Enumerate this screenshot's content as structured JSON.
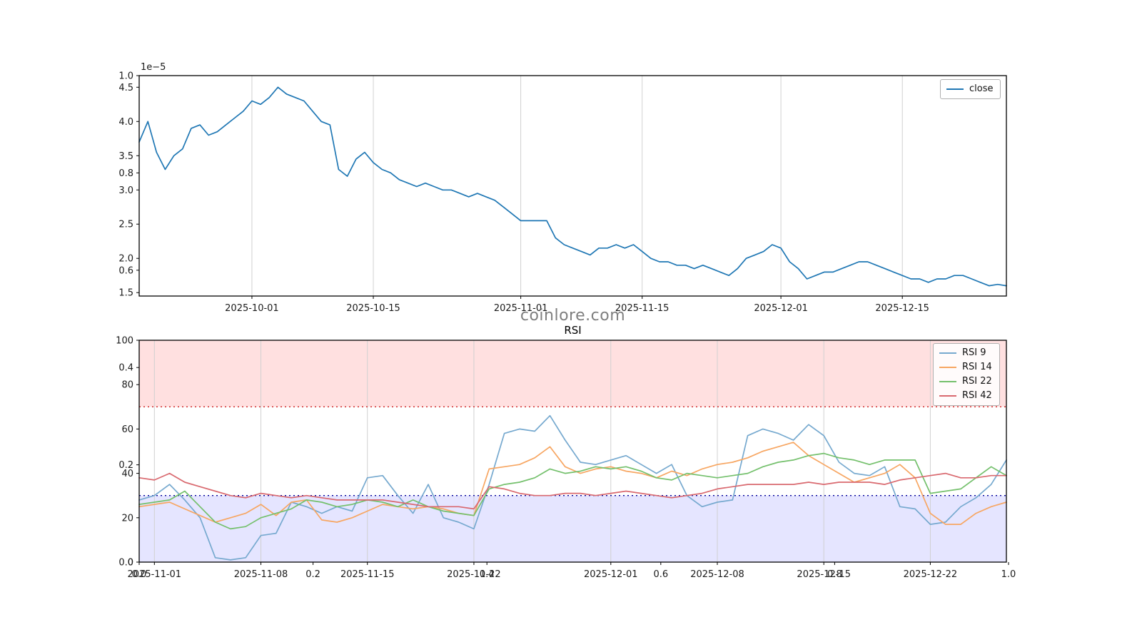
{
  "watermark": "coinlore.com",
  "colors": {
    "grid": "#d0d0d0",
    "spine": "#000000",
    "tick_text": "#1a1a1a",
    "overbought_band": "rgba(255,0,0,0.12)",
    "oversold_band": "rgba(0,0,255,0.10)",
    "overbought_line": "#cc2222",
    "oversold_line": "#000099",
    "watermark_color": "#7f7f7f"
  },
  "overlay_axis": {
    "y_ticks": [
      "1.0",
      "0.8",
      "0.6",
      "0.4",
      "0.2",
      "0.0"
    ],
    "x_ticks": [
      "0.0",
      "0.2",
      "0.4",
      "0.6",
      "0.8",
      "1.0"
    ]
  },
  "chart_data": [
    {
      "type": "line",
      "title": "",
      "offset_text": "1e−5",
      "legend_position": "upper right",
      "xlim": [
        "2025-09-18",
        "2025-12-27"
      ],
      "ylim": [
        1.45,
        4.67
      ],
      "y_ticks": [
        "1.5",
        "2.0",
        "2.5",
        "3.0",
        "3.5",
        "4.0",
        "4.5"
      ],
      "x_ticks": [
        "2025-10-01",
        "2025-10-15",
        "2025-11-01",
        "2025-11-15",
        "2025-12-01",
        "2025-12-15"
      ],
      "series": [
        {
          "name": "close",
          "color": "#1f77b4",
          "values": [
            3.7,
            4.0,
            3.55,
            3.3,
            3.5,
            3.6,
            3.9,
            3.95,
            3.8,
            3.85,
            3.95,
            4.05,
            4.15,
            4.3,
            4.25,
            4.35,
            4.5,
            4.4,
            4.35,
            4.3,
            4.15,
            4.0,
            3.95,
            3.3,
            3.2,
            3.45,
            3.55,
            3.4,
            3.3,
            3.25,
            3.15,
            3.1,
            3.05,
            3.1,
            3.05,
            3.0,
            3.0,
            2.95,
            2.9,
            2.95,
            2.9,
            2.85,
            2.75,
            2.65,
            2.55,
            2.55,
            2.55,
            2.55,
            2.3,
            2.2,
            2.15,
            2.1,
            2.05,
            2.15,
            2.15,
            2.2,
            2.15,
            2.2,
            2.1,
            2.0,
            1.95,
            1.95,
            1.9,
            1.9,
            1.85,
            1.9,
            1.85,
            1.8,
            1.75,
            1.85,
            2.0,
            2.05,
            2.1,
            2.2,
            2.15,
            1.95,
            1.85,
            1.7,
            1.75,
            1.8,
            1.8,
            1.85,
            1.9,
            1.95,
            1.95,
            1.9,
            1.85,
            1.8,
            1.75,
            1.7,
            1.7,
            1.65,
            1.7,
            1.7,
            1.75,
            1.75,
            1.7,
            1.65,
            1.6,
            1.62,
            1.6
          ]
        }
      ]
    },
    {
      "type": "line",
      "title": "RSI",
      "legend_position": "upper right",
      "xlim": [
        "2025-10-31",
        "2025-12-27"
      ],
      "ylim": [
        0,
        100
      ],
      "overbought": 70,
      "oversold": 30,
      "y_ticks": [
        "0",
        "20",
        "40",
        "60",
        "80",
        "100"
      ],
      "x_ticks": [
        "2025-11-01",
        "2025-11-08",
        "2025-11-15",
        "2025-11-22",
        "2025-12-01",
        "2025-12-08",
        "2025-12-15",
        "2025-12-22"
      ],
      "series": [
        {
          "name": "RSI 9",
          "color": "#76a9cf",
          "values": [
            28,
            30,
            35,
            28,
            20,
            2,
            1,
            2,
            12,
            13,
            27,
            25,
            22,
            25,
            23,
            38,
            39,
            30,
            22,
            35,
            20,
            18,
            15,
            35,
            58,
            60,
            59,
            66,
            55,
            45,
            44,
            46,
            48,
            44,
            40,
            44,
            30,
            25,
            27,
            28,
            57,
            60,
            58,
            55,
            62,
            57,
            45,
            40,
            39,
            43,
            25,
            24,
            17,
            18,
            25,
            29,
            35,
            46
          ]
        },
        {
          "name": "RSI 14",
          "color": "#f7a662",
          "values": [
            25,
            26,
            27,
            24,
            21,
            18,
            20,
            22,
            26,
            21,
            27,
            28,
            19,
            18,
            20,
            23,
            26,
            25,
            24,
            25,
            24,
            22,
            21,
            42,
            43,
            44,
            47,
            52,
            43,
            40,
            42,
            43,
            41,
            40,
            38,
            41,
            39,
            42,
            44,
            45,
            47,
            50,
            52,
            54,
            48,
            44,
            40,
            36,
            38,
            40,
            44,
            38,
            22,
            17,
            17,
            22,
            25,
            27
          ]
        },
        {
          "name": "RSI 22",
          "color": "#74c06c",
          "values": [
            26,
            27,
            28,
            32,
            25,
            18,
            15,
            16,
            20,
            22,
            24,
            28,
            27,
            25,
            26,
            28,
            27,
            25,
            28,
            25,
            23,
            22,
            21,
            33,
            35,
            36,
            38,
            42,
            40,
            41,
            43,
            42,
            43,
            41,
            38,
            37,
            40,
            39,
            38,
            39,
            40,
            43,
            45,
            46,
            48,
            49,
            47,
            46,
            44,
            46,
            46,
            46,
            31,
            32,
            33,
            38,
            43,
            39
          ]
        },
        {
          "name": "RSI 42",
          "color": "#d9696f",
          "values": [
            38,
            37,
            40,
            36,
            34,
            32,
            30,
            29,
            31,
            30,
            29,
            30,
            29,
            28,
            28,
            28,
            28,
            27,
            26,
            25,
            25,
            25,
            24,
            34,
            33,
            31,
            30,
            30,
            31,
            31,
            30,
            31,
            32,
            31,
            30,
            29,
            30,
            31,
            33,
            34,
            35,
            35,
            35,
            35,
            36,
            35,
            36,
            36,
            36,
            35,
            37,
            38,
            39,
            40,
            38,
            38,
            39,
            39
          ]
        }
      ]
    }
  ]
}
